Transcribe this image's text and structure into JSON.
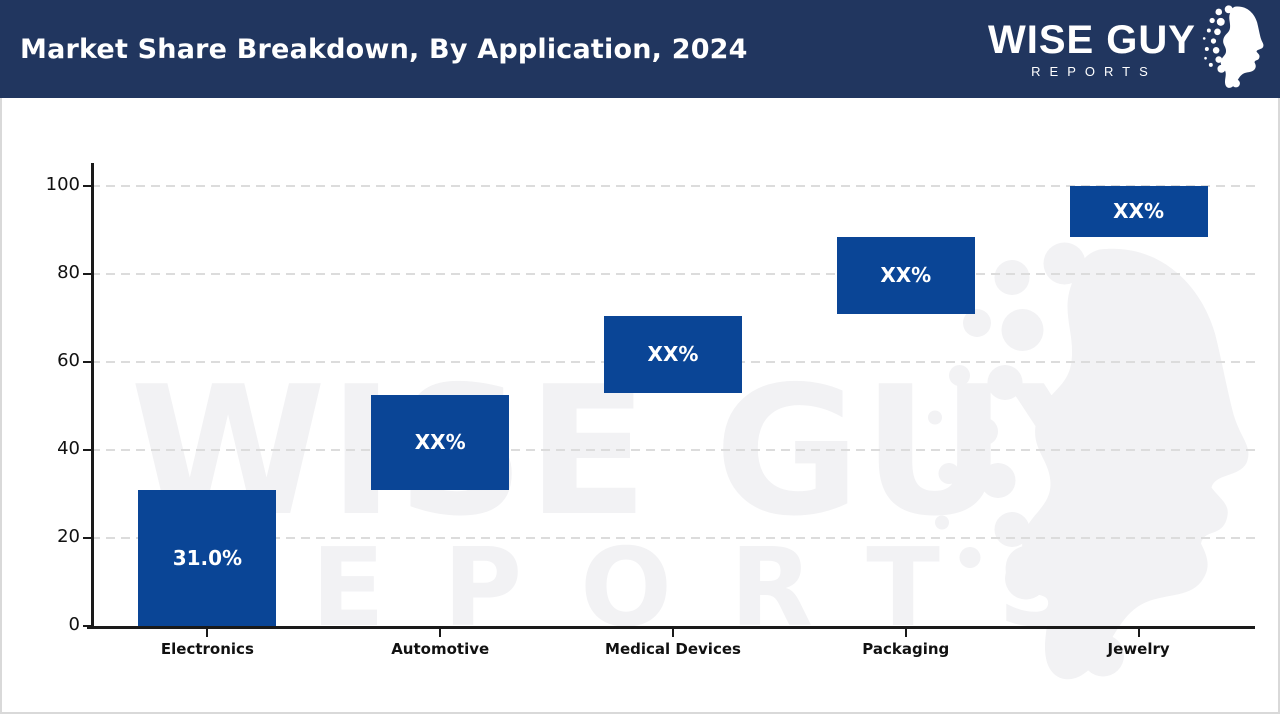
{
  "header": {
    "title": "Market Share Breakdown, By Application, 2024",
    "logo": {
      "line1": "WISE GUY",
      "line2": "REPORTS"
    }
  },
  "watermark": {
    "line1": "WISE GUY",
    "line2": "REPORTS"
  },
  "colors": {
    "header_bg": "#21365f",
    "bar_blue": "#0a4596",
    "axis": "#1a1a1a",
    "gridline": "#dcdcdc",
    "watermark": "#f2f2f4",
    "bar_label": "#ffffff"
  },
  "chart_data": {
    "type": "bar",
    "subtype": "waterfall",
    "title": "Market Share Breakdown, By Application, 2024",
    "categories": [
      "Electronics",
      "Automotive",
      "Medical Devices",
      "Packaging",
      "Jewelry"
    ],
    "segments": [
      {
        "category": "Electronics",
        "start": 0,
        "end": 31,
        "label": "31.0%"
      },
      {
        "category": "Automotive",
        "start": 31,
        "end": 52.5,
        "label": "XX%"
      },
      {
        "category": "Medical Devices",
        "start": 53,
        "end": 70.5,
        "label": "XX%"
      },
      {
        "category": "Packaging",
        "start": 71,
        "end": 88.5,
        "label": "XX%"
      },
      {
        "category": "Jewelry",
        "start": 88.5,
        "end": 100,
        "label": "XX%"
      }
    ],
    "yticks": [
      0,
      20,
      40,
      60,
      80,
      100
    ],
    "ylim": [
      0,
      104
    ],
    "xlabel": "",
    "ylabel": "",
    "grid": "horizontal-dashed",
    "legend": "none",
    "bar_color": "#0a4596",
    "label_color": "#ffffff"
  }
}
